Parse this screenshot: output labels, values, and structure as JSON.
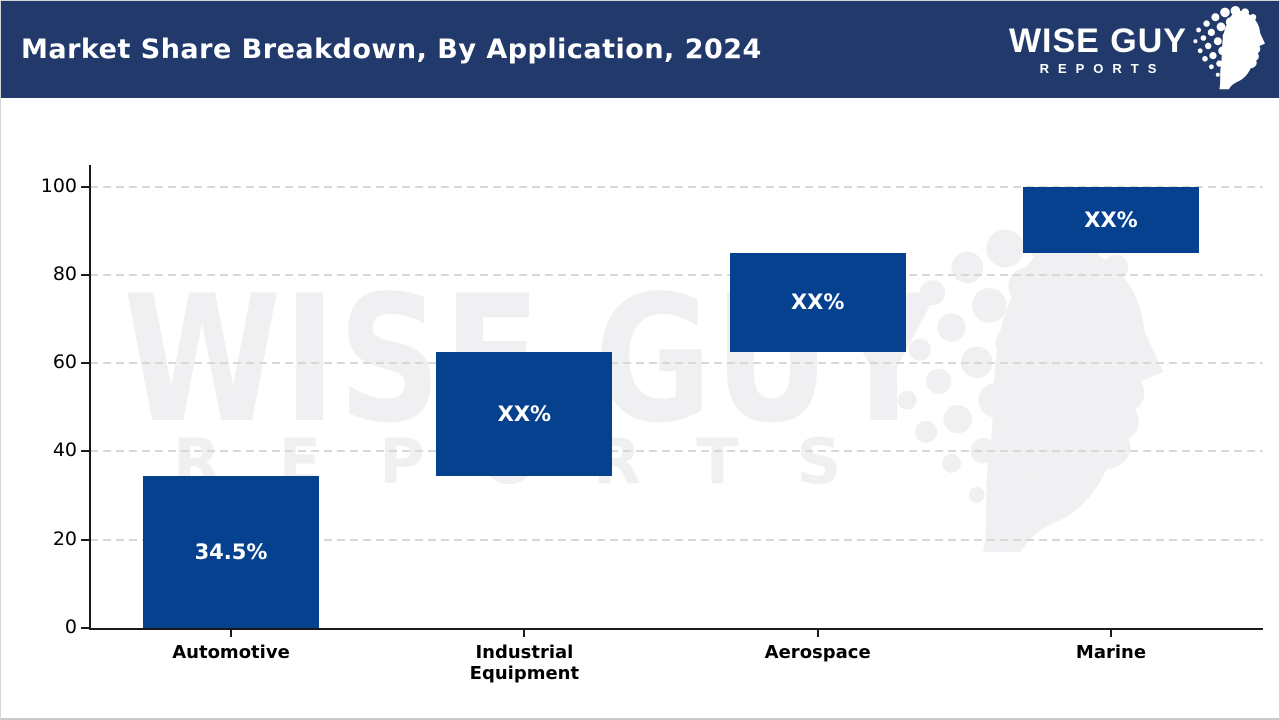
{
  "header": {
    "title": "Market Share Breakdown, By Application, 2024",
    "bg_color": "#213a6b",
    "brand": {
      "name": "WISE GUY",
      "sub": "REPORTS"
    }
  },
  "watermark": {
    "line1": "WISE GUY",
    "line2": "REPORTS"
  },
  "chart_data": {
    "type": "bar",
    "subtype": "waterfall",
    "title": "Market Share Breakdown, By Application, 2024",
    "categories": [
      "Automotive",
      "Industrial Equipment",
      "Aerospace",
      "Marine"
    ],
    "bar_labels": [
      "34.5%",
      "XX%",
      "XX%",
      "XX%"
    ],
    "segments": [
      {
        "start": 0,
        "end": 34.5
      },
      {
        "start": 34.5,
        "end": 62.5
      },
      {
        "start": 62.5,
        "end": 85
      },
      {
        "start": 85,
        "end": 100
      }
    ],
    "values": [
      34.5,
      28,
      22.5,
      15
    ],
    "yticks": [
      0,
      20,
      40,
      60,
      80,
      100
    ],
    "ylim": [
      0,
      105
    ],
    "xlabel": "",
    "ylabel": "",
    "bar_color": "#05418f",
    "grid": "horizontal-dashed",
    "legend": "none"
  }
}
